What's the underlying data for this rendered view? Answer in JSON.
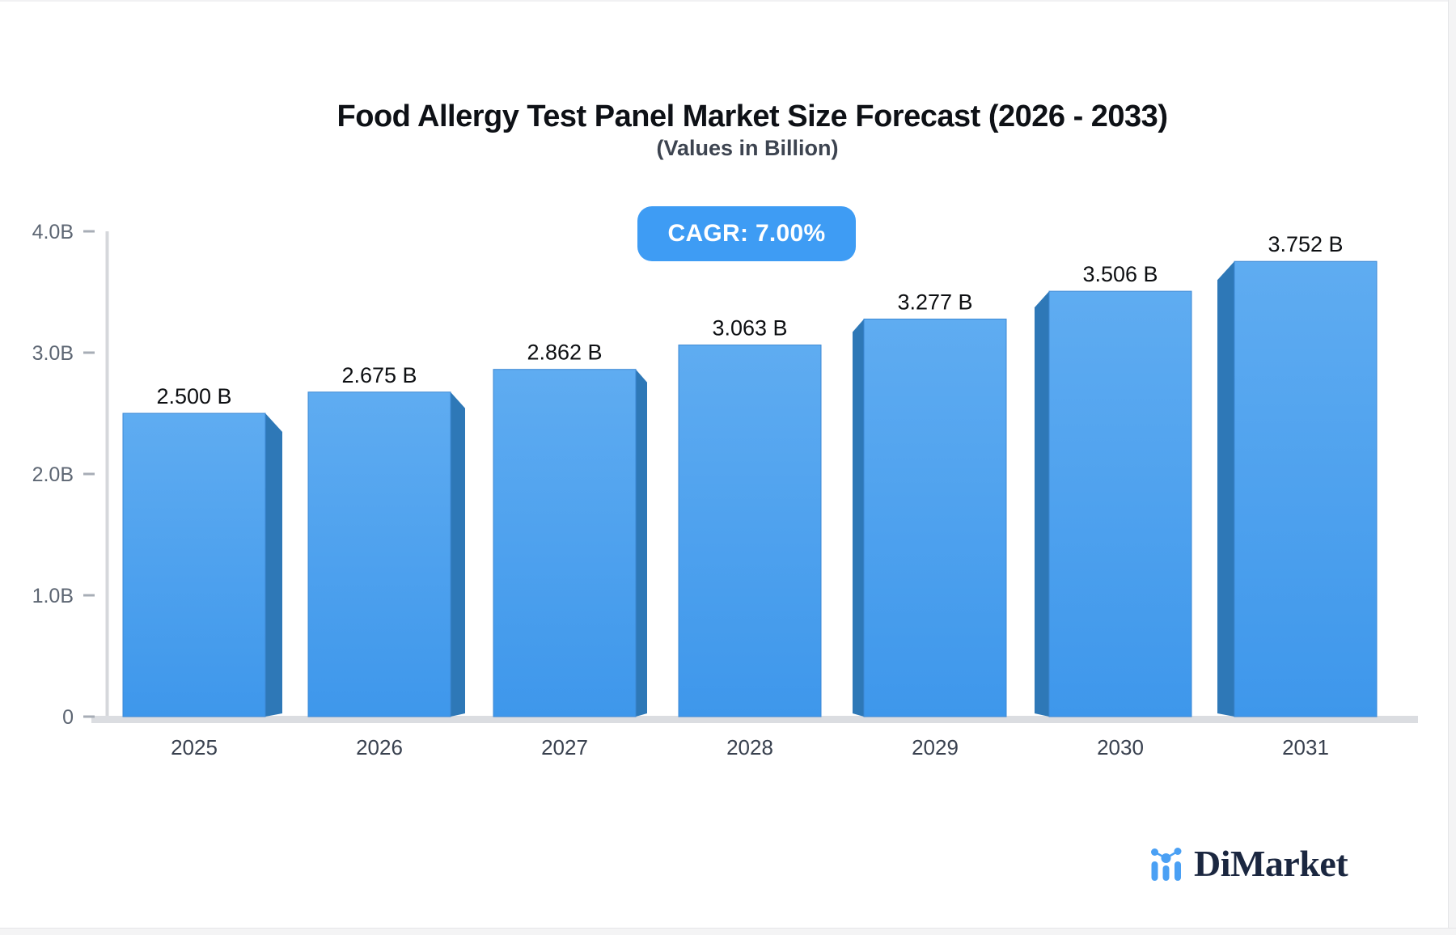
{
  "header": {
    "title": "Food Allergy Test Panel Market Size Forecast (2026 - 2033)",
    "subtitle": "(Values in Billion)",
    "cagr_badge": "CAGR: 7.00%"
  },
  "chart_data": {
    "type": "bar",
    "title": "Food Allergy Test Panel Market Size Forecast (2026 - 2033)",
    "subtitle": "(Values in Billion)",
    "cagr": "7.00%",
    "categories": [
      "2025",
      "2026",
      "2027",
      "2028",
      "2029",
      "2030",
      "2031"
    ],
    "values": [
      2.5,
      2.675,
      2.862,
      3.063,
      3.277,
      3.506,
      3.752
    ],
    "value_labels": [
      "2.500 B",
      "2.675 B",
      "2.862 B",
      "3.063 B",
      "3.277 B",
      "3.506 B",
      "3.752 B"
    ],
    "y_ticks": [
      {
        "label": "4.0B",
        "value": 4.0
      },
      {
        "label": "3.0B",
        "value": 3.0
      },
      {
        "label": "2.0B",
        "value": 2.0
      },
      {
        "label": "1.0B",
        "value": 1.0
      },
      {
        "label": "0",
        "value": 0.0
      }
    ],
    "ylim": [
      0,
      4.0
    ],
    "xlabel": "",
    "ylabel": "",
    "grid": false,
    "legend": null,
    "bar_color_top": "#5FACF1",
    "bar_color_bottom": "#3E97EB",
    "bar_side_color": "#2E78B7",
    "bar_border_color": "#3C88D4"
  },
  "footer": {
    "brand": "DiMarket"
  },
  "colors": {
    "badge_background": "#3E9CF4",
    "badge_text": "#FFFFFF",
    "axis_line": "#D5D7DB",
    "baseline": "#DBDDE1",
    "tick_mark": "#A7ADB6",
    "tick_label": "#5D6673",
    "x_label": "#39414F",
    "value_label": "#0D0F12",
    "brand_blue": "#4AA0F4",
    "brand_navy": "#1B2740"
  }
}
